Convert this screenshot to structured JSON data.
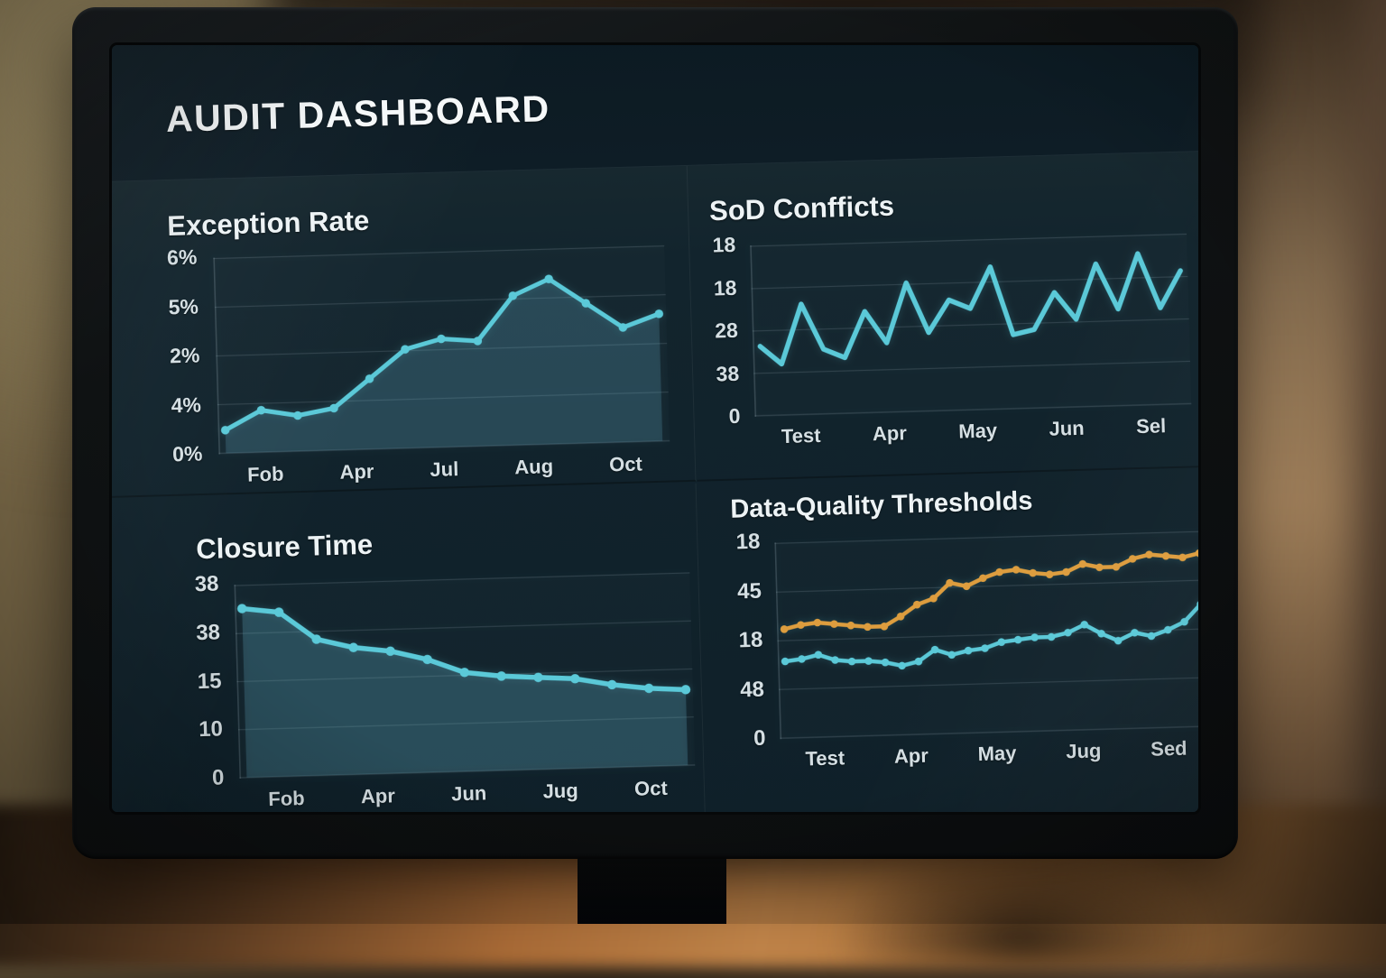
{
  "dashboard": {
    "title": "AUDIT DASHBOARD"
  },
  "colors": {
    "accent_teal": "#5bc9d8",
    "accent_orange": "#dd9d3e",
    "screen_background": "#0e1e27",
    "grid_line": "rgba(205,228,238,0.14)",
    "tick_text": "#d5dfe3"
  },
  "chart_data": [
    {
      "id": "exception-rate",
      "type": "area",
      "title": "Exception Rate",
      "y_ticks": [
        "6%",
        "5%",
        "2%",
        "4%",
        "0%"
      ],
      "x_ticks": [
        "Fob",
        "Apr",
        "Jul",
        "Aug",
        "Oct"
      ],
      "axis_max": 6,
      "grid": true,
      "legend": "none",
      "series": [
        {
          "name": "exception-rate",
          "color": "#5bc9d8",
          "width": 5,
          "markers": true,
          "fill": true,
          "fill_color": "rgba(101,170,196,0.22)",
          "values": [
            0.7,
            1.3,
            1.1,
            1.3,
            2.2,
            3.1,
            3.4,
            3.3,
            4.7,
            5.2,
            4.4,
            3.6,
            4.0
          ]
        }
      ]
    },
    {
      "id": "sod-conflicts",
      "type": "line",
      "title": "SoD Confficts",
      "y_ticks": [
        "18",
        "18",
        "28",
        "38",
        "0"
      ],
      "x_ticks": [
        "Test",
        "Apr",
        "May",
        "Jun",
        "Sel"
      ],
      "axis_max": 18,
      "grid": true,
      "legend": "none",
      "series": [
        {
          "name": "sod-conflicts",
          "color": "#5bc9d8",
          "width": 5.5,
          "markers": false,
          "fill": false,
          "values": [
            7.5,
            5.5,
            12,
            7,
            6,
            11,
            7.5,
            14,
            8.5,
            12,
            11,
            15.5,
            8,
            8.5,
            12.5,
            9.5,
            15.5,
            10.5,
            16.5,
            10.5,
            14.5
          ]
        }
      ]
    },
    {
      "id": "closure-time",
      "type": "area",
      "title": "Closure Time",
      "y_ticks": [
        "38",
        "38",
        "15",
        "10",
        "0"
      ],
      "x_ticks": [
        "Fob",
        "Apr",
        "Jun",
        "Jug",
        "Oct"
      ],
      "axis_max": 40,
      "grid": true,
      "legend": "none",
      "series": [
        {
          "name": "closure-time",
          "color": "#5bc9d8",
          "width": 5.5,
          "markers": true,
          "fill": true,
          "fill_color": "rgba(101,170,196,0.25)",
          "values": [
            36,
            35,
            29,
            27,
            26,
            24,
            21,
            20,
            19.5,
            19,
            17.5,
            16.5,
            16
          ]
        }
      ]
    },
    {
      "id": "data-quality-thresholds",
      "type": "line",
      "title": "Data-Quality Thresholds",
      "y_ticks": [
        "18",
        "45",
        "18",
        "48",
        "0"
      ],
      "x_ticks": [
        "Test",
        "Apr",
        "May",
        "Jug",
        "Sed"
      ],
      "axis_max": 100,
      "grid": true,
      "legend": "none",
      "series": [
        {
          "name": "threshold-upper",
          "color": "#dd9d3e",
          "width": 4.5,
          "markers": true,
          "fill": false,
          "values": [
            57,
            59,
            60,
            59,
            58,
            57,
            57,
            62,
            68,
            71,
            79,
            77,
            81,
            84,
            85,
            83,
            82,
            83,
            87,
            85,
            85,
            89,
            91,
            90,
            89,
            91
          ]
        },
        {
          "name": "threshold-lower",
          "color": "#5bc9d8",
          "width": 4.5,
          "markers": true,
          "fill": false,
          "values": [
            40,
            41,
            43,
            40,
            39,
            39,
            38,
            36,
            38,
            44,
            41,
            43,
            44,
            47,
            48,
            49,
            49,
            51,
            55,
            50,
            46,
            50,
            48,
            51,
            55,
            64
          ]
        }
      ]
    }
  ]
}
